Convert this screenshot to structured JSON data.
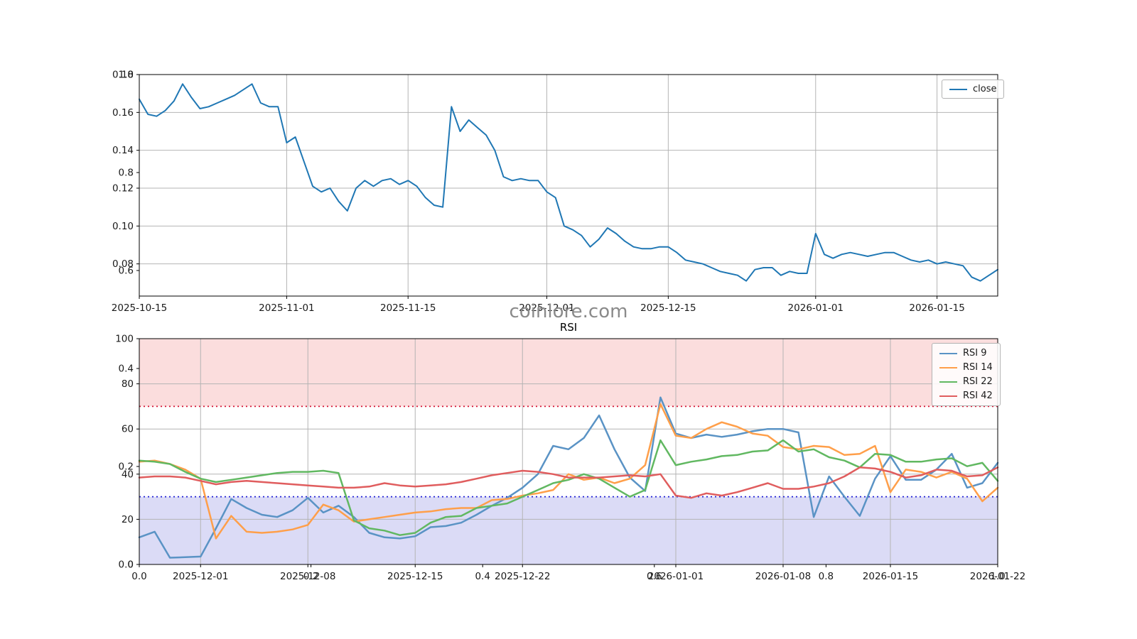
{
  "watermark": "coinlore.com",
  "colors": {
    "background": "#ffffff",
    "grid": "#b4b4b4",
    "spine": "#000000",
    "tick_label": "#1a1a1a",
    "watermark": "#8a8a8a",
    "legend_border": "#b3b3b3",
    "overbought_band": "#fbdddd",
    "oversold_band": "#dbdbf6",
    "overbought_line": "#d41535",
    "oversold_line": "#1f1fd4"
  },
  "overlay_axis": {
    "y_ticks": [
      {
        "label": "1.0",
        "f": 0.0
      },
      {
        "label": "0.8",
        "f": 0.2
      },
      {
        "label": "0.6",
        "f": 0.4
      },
      {
        "label": "0.4",
        "f": 0.6
      },
      {
        "label": "0.2",
        "f": 0.8
      },
      {
        "label": "0.0",
        "f": 1.0
      }
    ],
    "x_ticks": [
      {
        "label": "0.0",
        "f": 0.0
      },
      {
        "label": "0.2",
        "f": 0.2
      },
      {
        "label": "0.4",
        "f": 0.4
      },
      {
        "label": "0.6",
        "f": 0.6
      },
      {
        "label": "0.8",
        "f": 0.8
      },
      {
        "label": "1.0",
        "f": 1.0
      }
    ]
  },
  "chart_data": [
    {
      "type": "line",
      "title": "",
      "xlabel": "",
      "ylabel": "",
      "x_start": "2025-10-15",
      "x_end": "2026-01-22",
      "ylim": [
        0.063,
        0.18
      ],
      "grid": true,
      "legend_position": "upper right",
      "x_ticks": [
        {
          "label": "2025-10-15",
          "f": 0.0
        },
        {
          "label": "2025-11-01",
          "f": 0.1717
        },
        {
          "label": "2025-11-15",
          "f": 0.3131
        },
        {
          "label": "2025-12-01",
          "f": 0.4747
        },
        {
          "label": "2025-12-15",
          "f": 0.6162
        },
        {
          "label": "2026-01-01",
          "f": 0.7879
        },
        {
          "label": "2026-01-15",
          "f": 0.9293
        }
      ],
      "y_ticks": [
        {
          "label": "0.18",
          "v": 0.18
        },
        {
          "label": "0.16",
          "v": 0.16
        },
        {
          "label": "0.14",
          "v": 0.14
        },
        {
          "label": "0.12",
          "v": 0.12
        },
        {
          "label": "0.10",
          "v": 0.1
        },
        {
          "label": "0.08",
          "v": 0.08
        }
      ],
      "series": [
        {
          "name": "close",
          "color": "#1f77b4",
          "width": 2,
          "values": [
            0.167,
            0.159,
            0.158,
            0.161,
            0.166,
            0.175,
            0.168,
            0.162,
            0.163,
            0.165,
            0.167,
            0.169,
            0.172,
            0.175,
            0.165,
            0.163,
            0.163,
            0.144,
            0.147,
            0.134,
            0.121,
            0.118,
            0.12,
            0.113,
            0.108,
            0.12,
            0.124,
            0.121,
            0.124,
            0.125,
            0.122,
            0.124,
            0.121,
            0.115,
            0.111,
            0.11,
            0.163,
            0.15,
            0.156,
            0.152,
            0.148,
            0.14,
            0.126,
            0.124,
            0.125,
            0.124,
            0.124,
            0.118,
            0.115,
            0.1,
            0.098,
            0.095,
            0.089,
            0.093,
            0.099,
            0.096,
            0.092,
            0.089,
            0.088,
            0.088,
            0.089,
            0.089,
            0.086,
            0.082,
            0.081,
            0.08,
            0.078,
            0.076,
            0.075,
            0.074,
            0.071,
            0.077,
            0.078,
            0.078,
            0.074,
            0.076,
            0.075,
            0.075,
            0.096,
            0.085,
            0.083,
            0.085,
            0.086,
            0.085,
            0.084,
            0.085,
            0.086,
            0.086,
            0.084,
            0.082,
            0.081,
            0.082,
            0.08,
            0.081,
            0.08,
            0.079,
            0.073,
            0.071,
            0.074,
            0.077
          ]
        }
      ]
    },
    {
      "type": "line",
      "title": "RSI",
      "xlabel": "",
      "ylabel": "",
      "x_start": "2025-11-27",
      "x_end": "2026-01-22",
      "ylim": [
        0,
        100
      ],
      "grid": true,
      "legend_position": "upper right",
      "x_ticks": [
        {
          "label": "2025-12-01",
          "f": 0.0714
        },
        {
          "label": "2025-12-08",
          "f": 0.1964
        },
        {
          "label": "2025-12-15",
          "f": 0.3214
        },
        {
          "label": "2025-12-22",
          "f": 0.4464
        },
        {
          "label": "2026-01-01",
          "f": 0.625
        },
        {
          "label": "2026-01-08",
          "f": 0.75
        },
        {
          "label": "2026-01-15",
          "f": 0.875
        },
        {
          "label": "2026-01-22",
          "f": 1.0
        }
      ],
      "y_ticks": [
        {
          "label": "100",
          "v": 100
        },
        {
          "label": "80",
          "v": 80
        },
        {
          "label": "60",
          "v": 60
        },
        {
          "label": "40",
          "v": 40
        },
        {
          "label": "20",
          "v": 20
        },
        {
          "label": "0",
          "v": 0
        }
      ],
      "bands": [
        {
          "y0": 70,
          "y1": 100,
          "color": "#fbdddd",
          "name": "overbought-band"
        },
        {
          "y0": 0,
          "y1": 30,
          "color": "#dbdbf6",
          "name": "oversold-band"
        }
      ],
      "hlines": [
        {
          "y": 70,
          "color": "#d41535"
        },
        {
          "y": 30,
          "color": "#1f1fd4"
        }
      ],
      "series": [
        {
          "name": "RSI 9",
          "color": "#5a93c5",
          "width": 2.5,
          "values": [
            12,
            14.5,
            3,
            3.2,
            3.5,
            16,
            29,
            25,
            22,
            21,
            24,
            29.5,
            23,
            26,
            21,
            14,
            12,
            11.5,
            12.5,
            16.5,
            17,
            18.5,
            22,
            26,
            29.5,
            34,
            40,
            52.5,
            51,
            56,
            66,
            51,
            38.5,
            32.5,
            74,
            58,
            56,
            57.5,
            56.5,
            57.5,
            59,
            60,
            60,
            58.5,
            21,
            39,
            30,
            21.5,
            38,
            48,
            37.5,
            37.5,
            42,
            49,
            34,
            36,
            45
          ]
        },
        {
          "name": "RSI 14",
          "color": "#ff9f4a",
          "width": 2.5,
          "values": [
            45.5,
            46,
            44.5,
            42,
            38,
            11.5,
            21.5,
            14.5,
            14,
            14.5,
            15.5,
            17.5,
            26.5,
            24,
            19,
            20,
            21,
            22,
            23,
            23.5,
            24.5,
            25,
            25,
            28.5,
            29,
            30.5,
            31.5,
            33,
            40,
            37.5,
            38.5,
            36,
            38,
            44,
            71,
            57,
            56,
            60,
            63,
            61,
            58,
            57,
            52,
            51,
            52.5,
            52,
            48.5,
            49,
            52.5,
            32,
            42,
            41,
            38.5,
            41,
            38,
            28,
            34
          ]
        },
        {
          "name": "RSI 22",
          "color": "#61b861",
          "width": 2.5,
          "values": [
            46,
            45.5,
            44.5,
            41,
            38,
            36.5,
            37.5,
            38.5,
            39.5,
            40.5,
            41,
            41,
            41.5,
            40.5,
            19.5,
            16,
            15,
            13,
            14,
            18.5,
            21,
            21.5,
            25,
            26,
            27,
            30,
            33,
            36,
            37.5,
            40,
            38,
            34,
            30,
            33,
            55,
            44,
            45.5,
            46.5,
            48,
            48.5,
            50,
            50.5,
            55,
            50,
            51,
            47.5,
            46,
            43,
            49,
            48.5,
            45.5,
            45.5,
            46.5,
            47,
            43.5,
            45,
            37
          ]
        },
        {
          "name": "RSI 42",
          "color": "#e05d5e",
          "width": 2.5,
          "values": [
            38.5,
            39,
            39,
            38.5,
            37,
            35.5,
            36.5,
            37,
            36.5,
            36,
            35.5,
            35,
            34.5,
            34,
            34,
            34.5,
            36,
            35,
            34.5,
            35,
            35.5,
            36.5,
            38,
            39.5,
            40.5,
            41.5,
            41,
            40,
            38.5,
            38.5,
            38.5,
            39,
            39.5,
            39,
            40,
            30.5,
            29.5,
            31.5,
            30.5,
            32,
            34,
            36,
            33.5,
            33.5,
            34.5,
            36,
            39,
            43,
            42.5,
            41,
            38.5,
            39.5,
            42,
            41.5,
            39,
            39.5,
            43
          ]
        }
      ]
    }
  ]
}
